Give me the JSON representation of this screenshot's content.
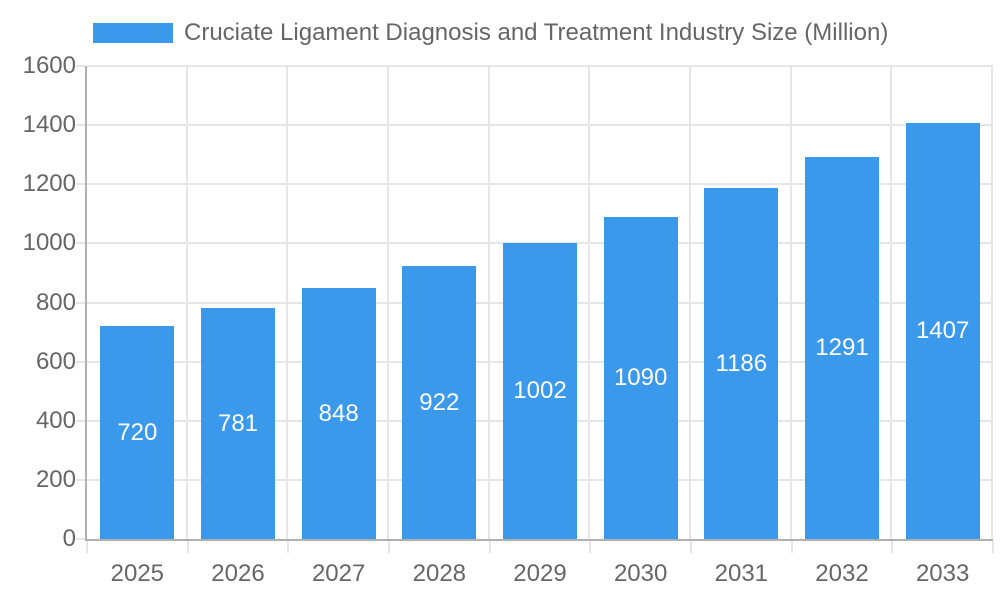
{
  "chart_data": {
    "type": "bar",
    "title": "Cruciate Ligament Diagnosis and Treatment Industry Size (Million)",
    "series_name": "Cruciate Ligament Diagnosis and Treatment Industry Size (Million)",
    "categories": [
      "2025",
      "2026",
      "2027",
      "2028",
      "2029",
      "2030",
      "2031",
      "2032",
      "2033"
    ],
    "values": [
      720,
      781,
      848,
      922,
      1002,
      1090,
      1186,
      1291,
      1407
    ],
    "ylim": [
      0,
      1600
    ],
    "yticks": [
      0,
      200,
      400,
      600,
      800,
      1000,
      1200,
      1400,
      1600
    ],
    "grid": true,
    "legend_position": "top",
    "xlabel": "",
    "ylabel": "",
    "colors": {
      "bar": "#3b99ec",
      "value_label": "#ffffff",
      "axis_text": "#666666",
      "grid_line": "#e6e6e6",
      "axis_line": "#b0b0b0",
      "background": "#ffffff"
    }
  }
}
